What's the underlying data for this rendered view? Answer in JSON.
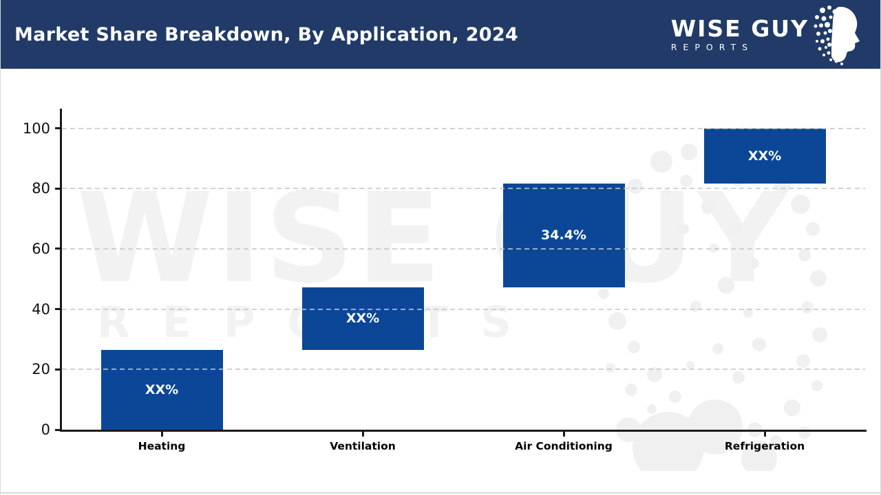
{
  "header": {
    "title": "Market Share Breakdown, By Application, 2024",
    "bg_color": "#213a67",
    "logo": {
      "line1": "WISE GUY",
      "line2": "REPORTS"
    }
  },
  "watermark": {
    "line1": "WISE GUY",
    "line2": "REPORTS"
  },
  "chart_data": {
    "type": "bar",
    "subtype": "waterfall",
    "title": "Market Share Breakdown, By Application, 2024",
    "xlabel": "",
    "ylabel": "",
    "categories": [
      "Heating",
      "Ventilation",
      "Air Conditioning",
      "Refrigeration"
    ],
    "segments": [
      {
        "category": "Heating",
        "start": 0,
        "end": 26.5,
        "value_estimate": 26.5,
        "label": "XX%"
      },
      {
        "category": "Ventilation",
        "start": 26.5,
        "end": 47.3,
        "value_estimate": 20.8,
        "label": "XX%"
      },
      {
        "category": "Air Conditioning",
        "start": 47.3,
        "end": 81.7,
        "value_estimate": 34.4,
        "label": "34.4%"
      },
      {
        "category": "Refrigeration",
        "start": 81.7,
        "end": 100,
        "value_estimate": 18.3,
        "label": "XX%"
      }
    ],
    "y_ticks": [
      0,
      20,
      40,
      60,
      80,
      100
    ],
    "ylim": [
      0,
      106.5
    ],
    "grid": "horizontal dashed, drawn over bars",
    "legend": "none",
    "bar_color": "#0b4796",
    "bar_label_color": "#ffffff",
    "axis_color": "#1a1a1a",
    "gridline_color": "#c6c6c6",
    "watermark_text": "WISE GUY REPORTS"
  }
}
